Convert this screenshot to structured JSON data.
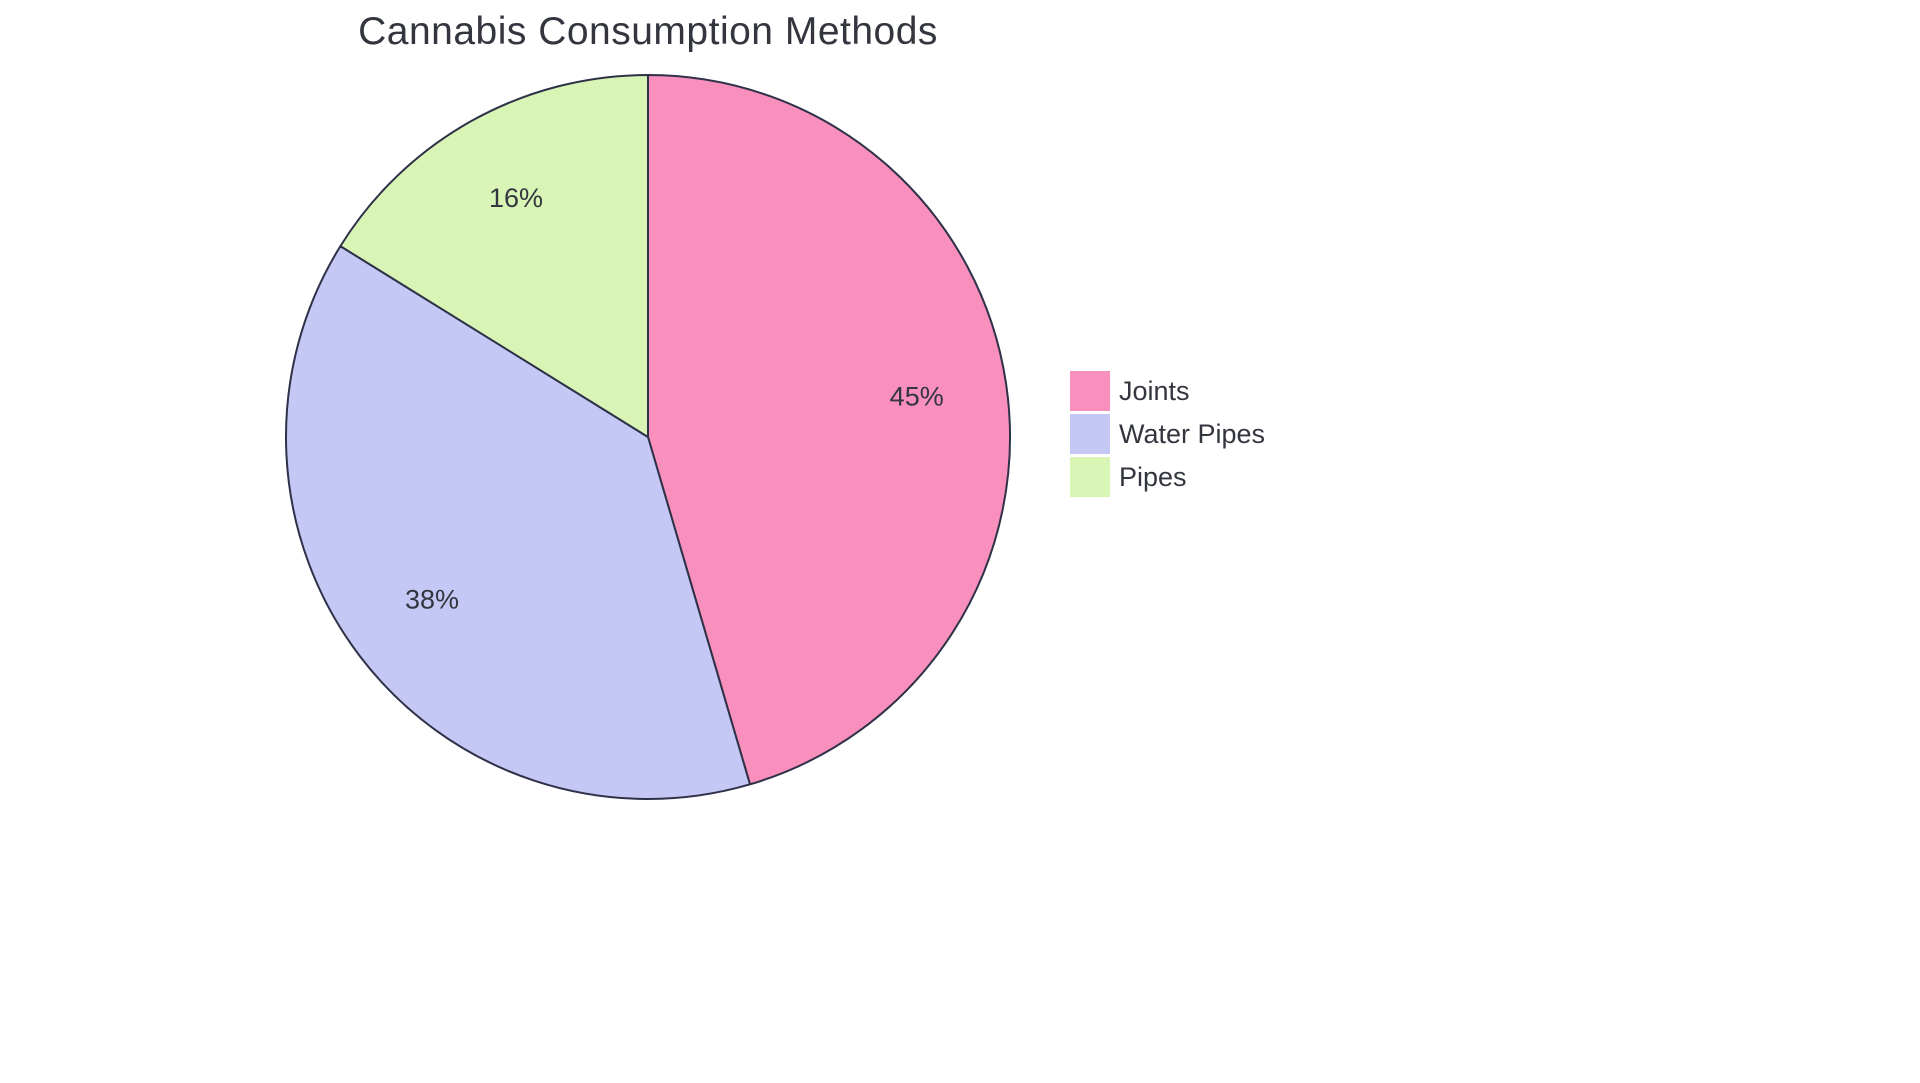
{
  "chart_data": {
    "type": "pie",
    "title": "Cannabis Consumption Methods",
    "labels": [
      "Joints",
      "Water Pipes",
      "Pipes"
    ],
    "values": [
      45,
      38,
      16
    ],
    "value_labels": [
      "45%",
      "38%",
      "16%"
    ],
    "unit": "%",
    "colors": [
      "#F98FBC",
      "#C5C7F5",
      "#D8F5B6"
    ],
    "slice_stroke": "#2E3147",
    "slice_stroke_width": 2,
    "label_color": "#33363F",
    "title_color": "#33363F",
    "background": "#FFFFFF",
    "legend_position": "right",
    "start_angle_deg": 0,
    "direction": "clockwise"
  }
}
